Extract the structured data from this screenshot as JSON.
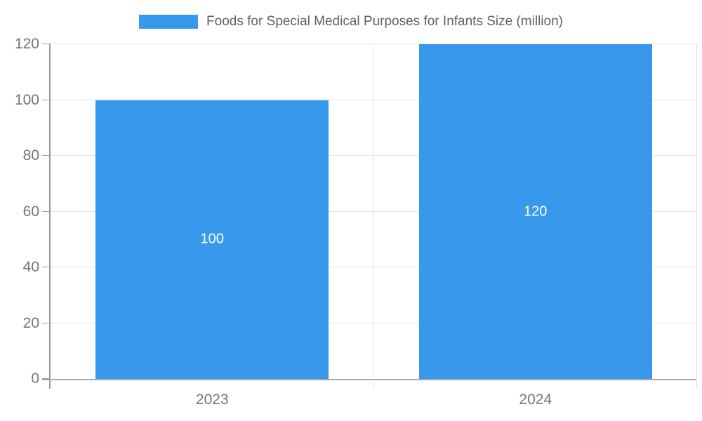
{
  "legend": {
    "label": "Foods for Special Medical Purposes for Infants Size (million)"
  },
  "chart_data": {
    "type": "bar",
    "title": "Foods for Special Medical Purposes for Infants Size (million)",
    "categories": [
      "2023",
      "2024"
    ],
    "series": [
      {
        "name": "Foods for Special Medical Purposes for Infants Size (million)",
        "values": [
          100,
          120
        ]
      }
    ],
    "value_labels": [
      "100",
      "120"
    ],
    "xlabel": "",
    "ylabel": "",
    "ylim": [
      0,
      120
    ],
    "yticks": [
      0,
      20,
      40,
      60,
      80,
      100,
      120
    ],
    "grid": true,
    "legend_position": "top"
  },
  "colors": {
    "bar": "#3899EC",
    "gridline": "#e6e6e6",
    "axis": "#999999",
    "axis_bottom": "#ababab",
    "tick_label": "#757575",
    "value_label": "#ffffff",
    "legend_text": "#616161"
  }
}
